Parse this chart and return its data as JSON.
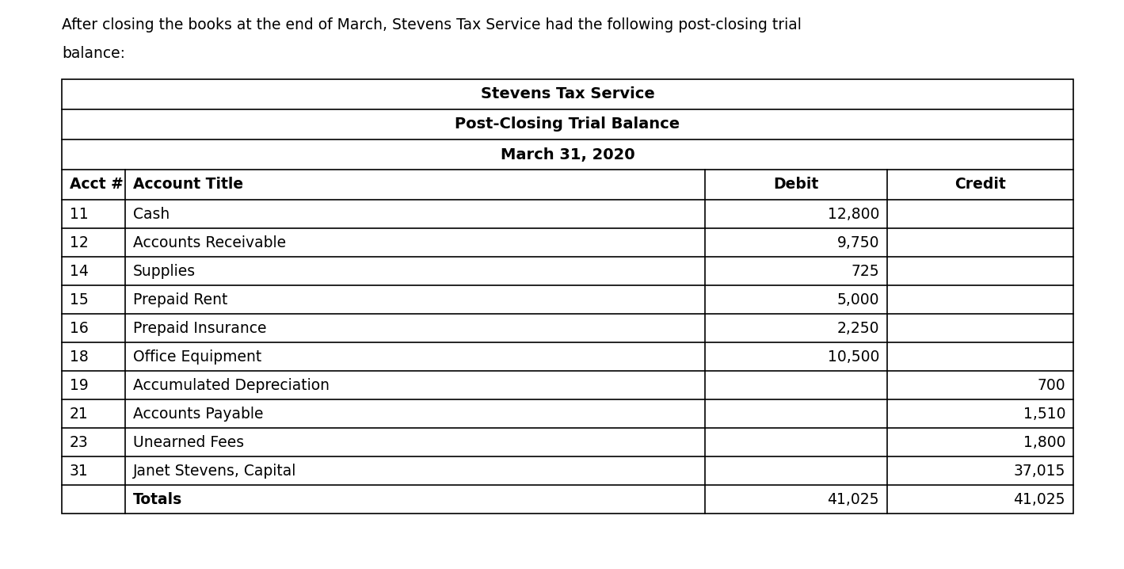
{
  "intro_text_line1": "After closing the books at the end of March, Stevens Tax Service had the following post-closing trial",
  "intro_text_line2": "balance:",
  "title1": "Stevens Tax Service",
  "title2": "Post-Closing Trial Balance",
  "title3": "March 31, 2020",
  "col_headers": [
    "Acct #",
    "Account Title",
    "Debit",
    "Credit"
  ],
  "rows": [
    {
      "acct": "11",
      "title": "Cash",
      "debit": "12,800",
      "credit": ""
    },
    {
      "acct": "12",
      "title": "Accounts Receivable",
      "debit": "9,750",
      "credit": ""
    },
    {
      "acct": "14",
      "title": "Supplies",
      "debit": "725",
      "credit": ""
    },
    {
      "acct": "15",
      "title": "Prepaid Rent",
      "debit": "5,000",
      "credit": ""
    },
    {
      "acct": "16",
      "title": "Prepaid Insurance",
      "debit": "2,250",
      "credit": ""
    },
    {
      "acct": "18",
      "title": "Office Equipment",
      "debit": "10,500",
      "credit": ""
    },
    {
      "acct": "19",
      "title": "Accumulated Depreciation",
      "debit": "",
      "credit": "700"
    },
    {
      "acct": "21",
      "title": "Accounts Payable",
      "debit": "",
      "credit": "1,510"
    },
    {
      "acct": "23",
      "title": "Unearned Fees",
      "debit": "",
      "credit": "1,800"
    },
    {
      "acct": "31",
      "title": "Janet Stevens, Capital",
      "debit": "",
      "credit": "37,015"
    },
    {
      "acct": "",
      "title": "Totals",
      "debit": "41,025",
      "credit": "41,025"
    }
  ],
  "background_color": "#ffffff",
  "border_color": "#000000",
  "text_color": "#000000",
  "font_size_intro": 13.5,
  "font_size_title": 14.0,
  "font_size_header": 13.5,
  "font_size_row": 13.5,
  "fig_width": 14.19,
  "fig_height": 7.18,
  "dpi": 100
}
